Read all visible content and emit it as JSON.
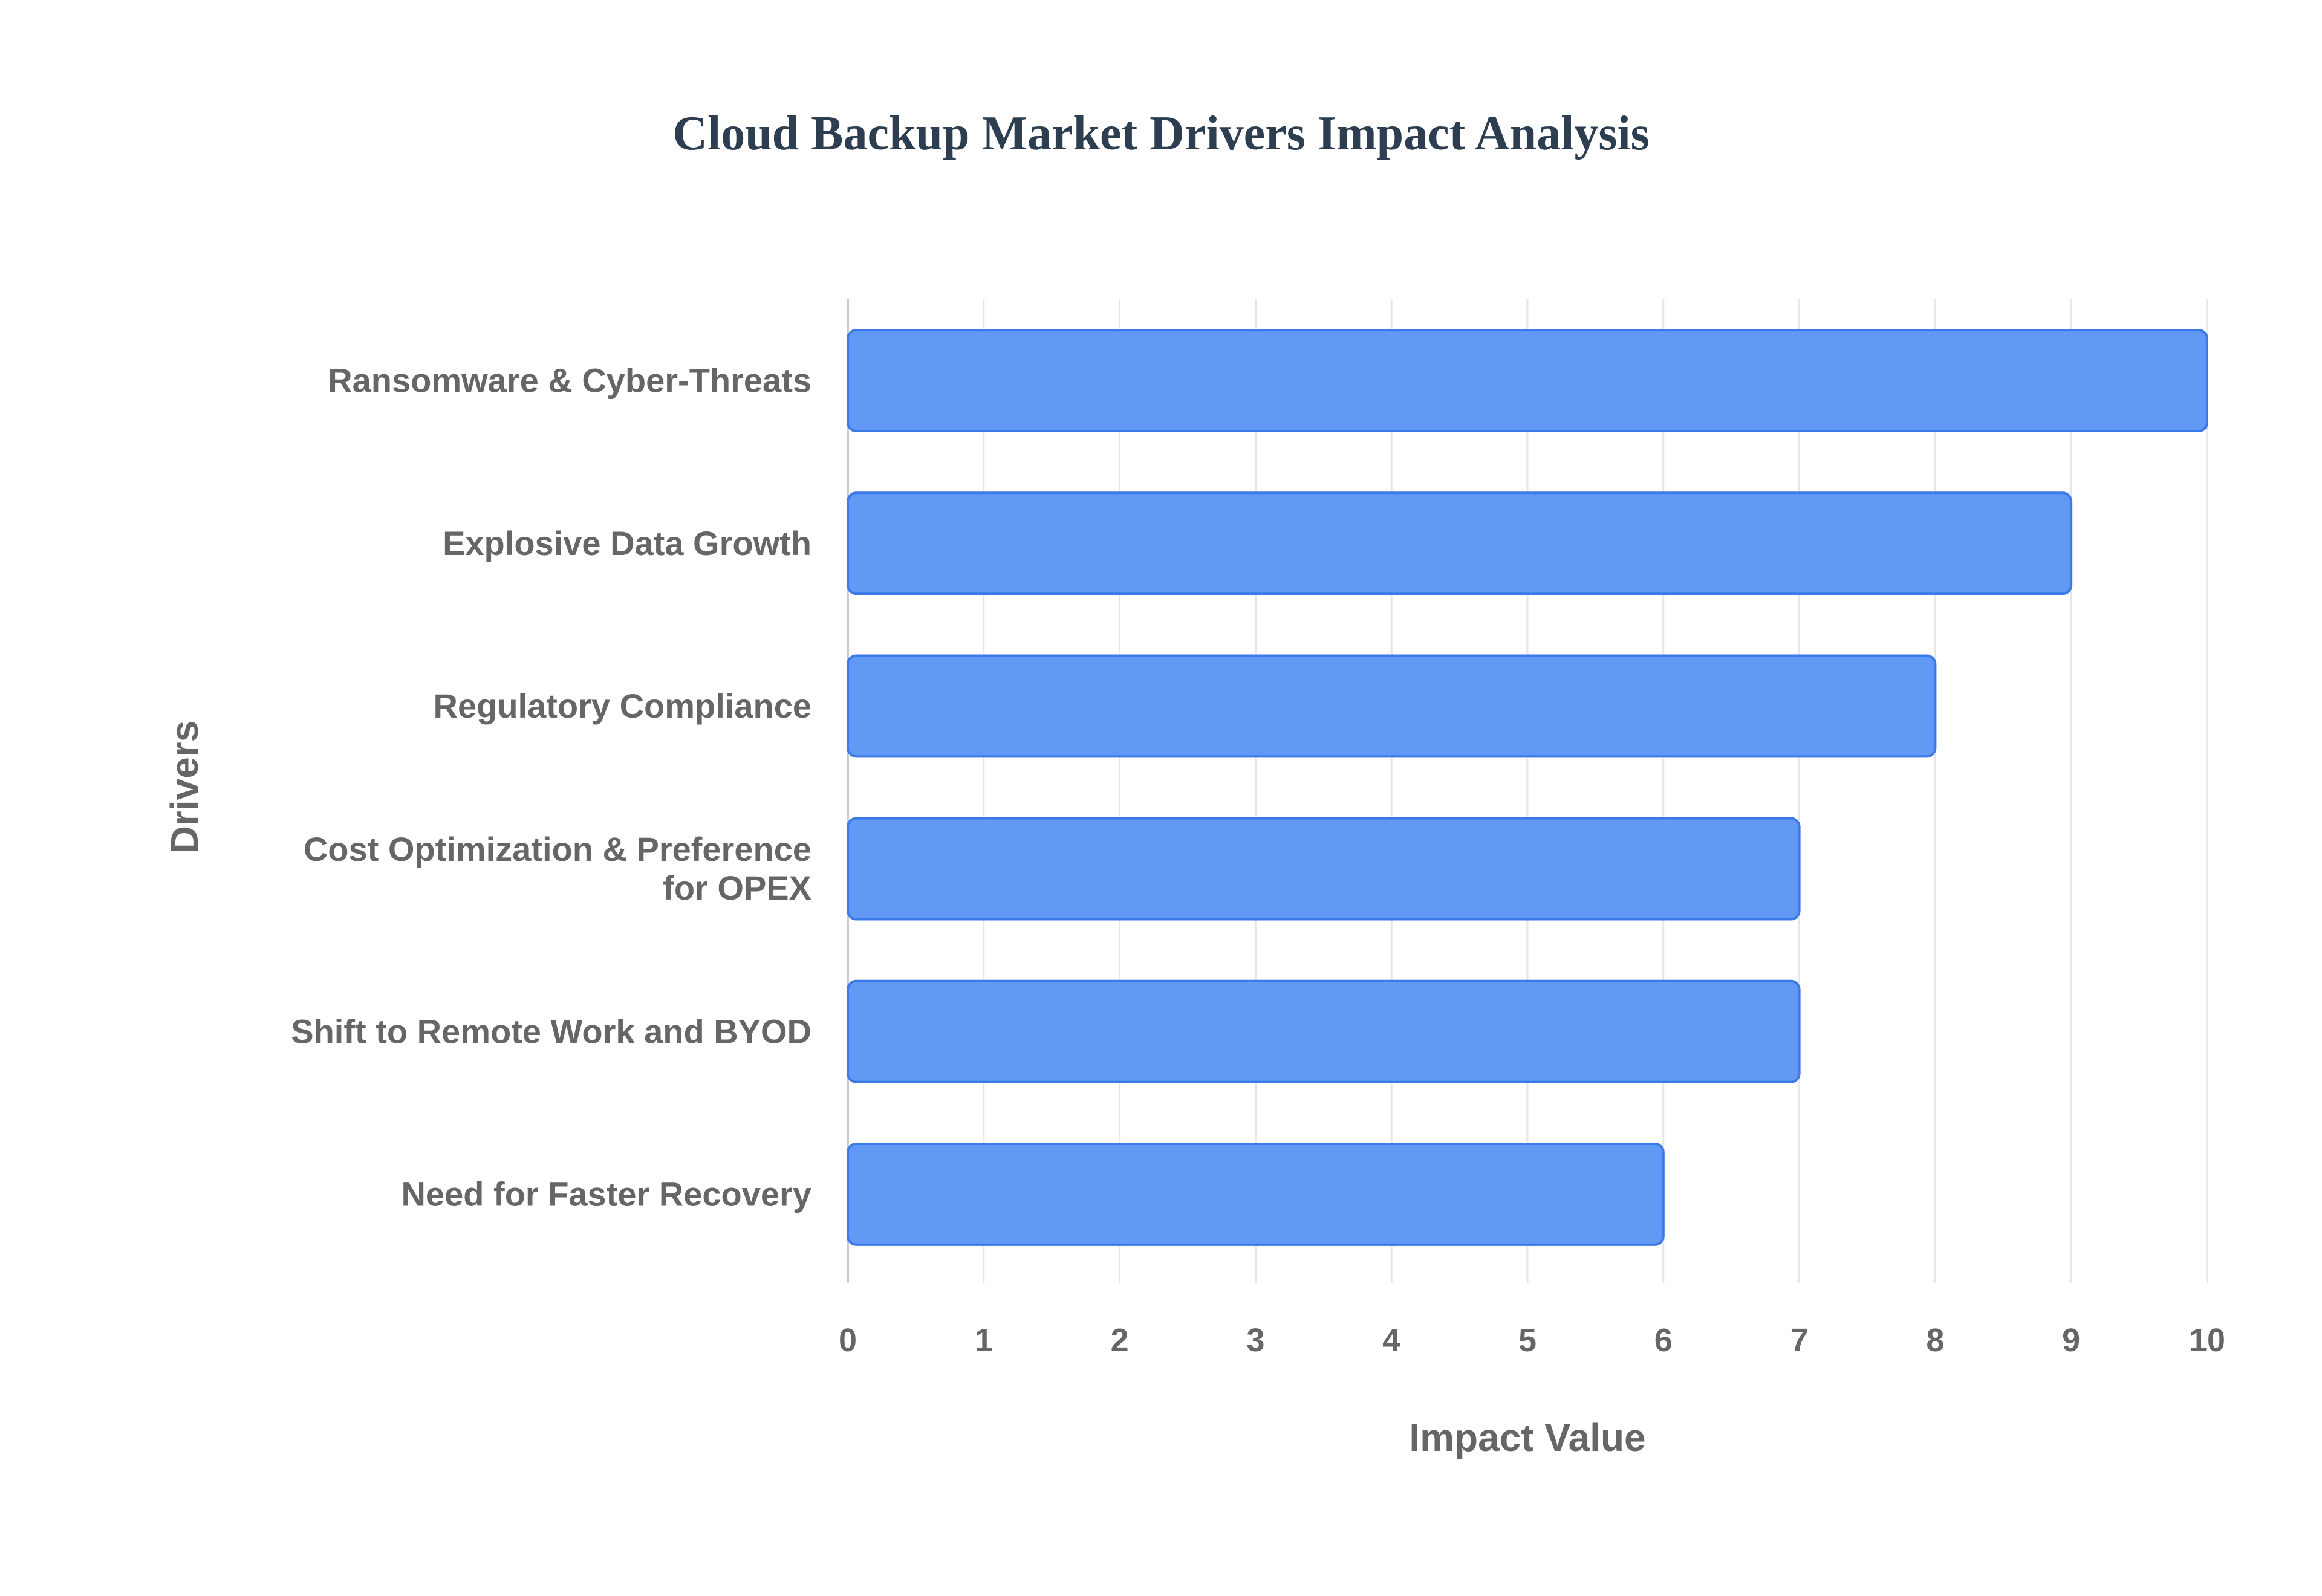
{
  "chart_data": {
    "type": "bar",
    "orientation": "horizontal",
    "title": "Cloud Backup Market Drivers Impact Analysis",
    "xlabel": "Impact Value",
    "ylabel": "Drivers",
    "xlim": [
      0,
      10
    ],
    "xticks": [
      0,
      1,
      2,
      3,
      4,
      5,
      6,
      7,
      8,
      9,
      10
    ],
    "grid": true,
    "bar_color": "#6199f5",
    "bar_border_color": "#3b7ae8",
    "categories": [
      [
        "Ransomware & Cyber-Threats"
      ],
      [
        "Explosive Data Growth"
      ],
      [
        "Regulatory Compliance"
      ],
      [
        "Cost Optimization & Preference",
        "for OPEX"
      ],
      [
        "Shift to Remote Work and BYOD"
      ],
      [
        "Need for Faster Recovery"
      ]
    ],
    "values": [
      10,
      9,
      8,
      7,
      7,
      6
    ]
  }
}
